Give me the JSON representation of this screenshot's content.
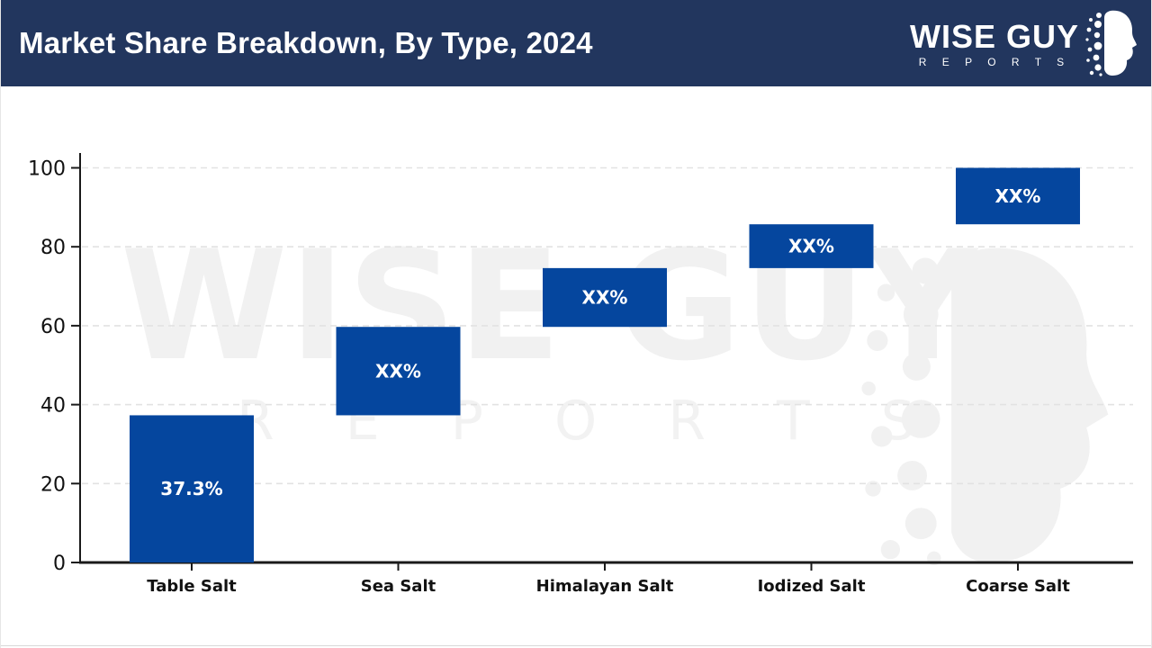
{
  "header": {
    "title": "Market Share Breakdown, By Type, 2024",
    "logo": {
      "name": "WISE GUY",
      "subtitle": "R E P O R T S"
    }
  },
  "watermark": {
    "line1": "WISE GUY",
    "line2": "R E P O R T S"
  },
  "colors": {
    "header_bg": "#22365e",
    "bar": "#05469e",
    "bar_label": "#ffffff",
    "axis": "#1a1a1a",
    "grid": "#e2e2e2",
    "tick_text": "#111111",
    "watermark": "#f1f1f1"
  },
  "chart_data": {
    "type": "bar",
    "subtype": "waterfall",
    "title": "Market Share Breakdown, By Type, 2024",
    "categories": [
      "Table Salt",
      "Sea Salt",
      "Himalayan Salt",
      "Iodized Salt",
      "Coarse Salt"
    ],
    "segments": [
      {
        "category": "Table Salt",
        "start": 0,
        "end": 37.3,
        "label": "37.3%"
      },
      {
        "category": "Sea Salt",
        "start": 37.3,
        "end": 59.7,
        "label": "XX%"
      },
      {
        "category": "Himalayan Salt",
        "start": 59.7,
        "end": 74.6,
        "label": "XX%"
      },
      {
        "category": "Iodized Salt",
        "start": 74.6,
        "end": 85.7,
        "label": "XX%"
      },
      {
        "category": "Coarse Salt",
        "start": 85.7,
        "end": 100,
        "label": "XX%"
      }
    ],
    "y_ticks": [
      0,
      20,
      40,
      60,
      80,
      100
    ],
    "ylim": [
      0,
      104
    ],
    "xlabel": "",
    "ylabel": "",
    "grid": "horizontal-dashed",
    "legend": "none"
  }
}
